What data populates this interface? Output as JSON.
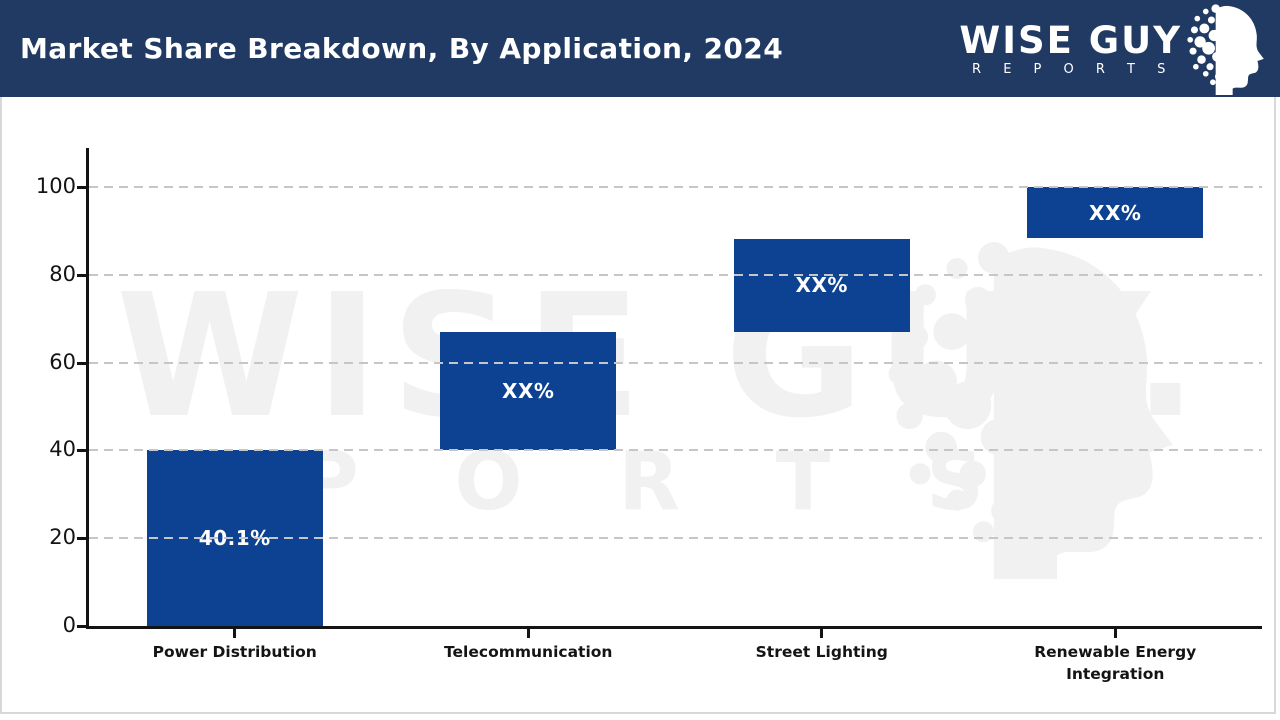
{
  "header": {
    "title": "Market Share Breakdown, By Application, 2024",
    "logo": {
      "line1": "WISE GUY",
      "line2": "R E P O R T S"
    }
  },
  "watermark": {
    "line1": "WISE GUY.",
    "line2": "P O R T S"
  },
  "colors": {
    "header_bg": "#213a63",
    "bar": "#0d4191",
    "grid": "#c6c6c6",
    "axis": "#141414",
    "bar_label_text": "#ffffff",
    "watermark": "#f1f1f1"
  },
  "chart_data": {
    "type": "bar",
    "subtype": "floating-waterfall",
    "title": "Market Share Breakdown, By Application, 2024",
    "xlabel": "",
    "ylabel": "",
    "categories": [
      "Power Distribution",
      "Telecommunication",
      "Street Lighting",
      "Renewable Energy Integration"
    ],
    "segments": [
      {
        "category": "Power Distribution",
        "start": 0,
        "end": 40.1,
        "label": "40.1%"
      },
      {
        "category": "Telecommunication",
        "start": 40.1,
        "end": 67.0,
        "label": "XX%"
      },
      {
        "category": "Street Lighting",
        "start": 67.0,
        "end": 88.2,
        "label": "XX%"
      },
      {
        "category": "Renewable Energy Integration",
        "start": 88.3,
        "end": 100.0,
        "label": "XX%"
      }
    ],
    "yticks": [
      0,
      20,
      40,
      60,
      80,
      100
    ],
    "ylim": [
      0,
      108
    ],
    "grid": "horizontal dashed lines at y ticks, drawn over bars",
    "legend": "none"
  }
}
